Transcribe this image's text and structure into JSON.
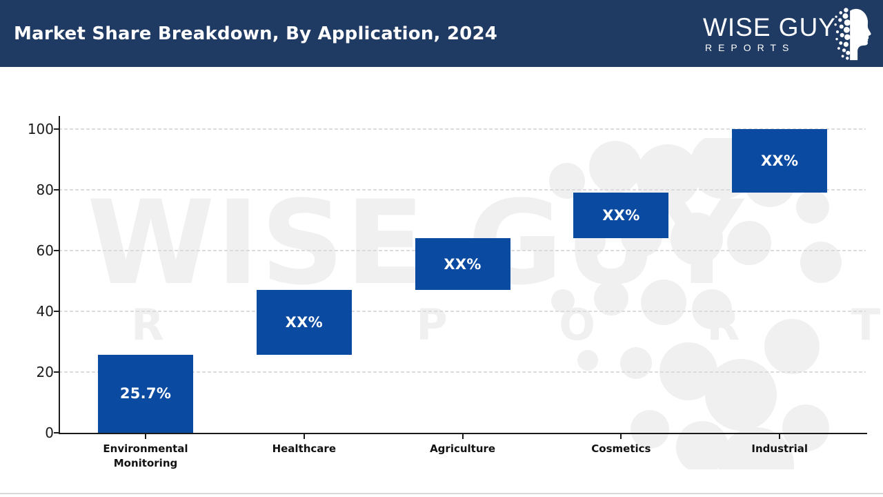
{
  "header": {
    "title": "Market Share Breakdown, By Application, 2024",
    "logo": {
      "line1": "WISE GUY",
      "line2": "REPORTS"
    }
  },
  "watermark": {
    "line1": "WISE GUY",
    "line2": "R E P O R T S"
  },
  "colors": {
    "header_bg": "#1f3a63",
    "bar_blue": "#0b4aa1",
    "axis_black": "#1a1a1a",
    "grid_gray": "#dcdcdc",
    "watermark_gray": "#f0f0f0",
    "value_label_white": "#ffffff"
  },
  "chart_data": {
    "type": "bar",
    "variant": "floating-waterfall-segments",
    "title": "Market Share Breakdown, By Application, 2024",
    "xlabel": "",
    "ylabel": "",
    "ylim": [
      0,
      104
    ],
    "yticks": [
      0,
      20,
      40,
      60,
      80,
      100
    ],
    "grid": "horizontal dashed",
    "legend": "none",
    "categories": [
      "Environmental Monitoring",
      "Healthcare",
      "Agriculture",
      "Cosmetics",
      "Industrial"
    ],
    "category_lines": [
      [
        "Environmental",
        "Monitoring"
      ],
      [
        "Healthcare"
      ],
      [
        "Agriculture"
      ],
      [
        "Cosmetics"
      ],
      [
        "Industrial"
      ]
    ],
    "bars": [
      {
        "category": "Environmental Monitoring",
        "start": 0,
        "end": 25.7,
        "value_label": "25.7%"
      },
      {
        "category": "Healthcare",
        "start": 25.7,
        "end": 47,
        "value_label": "XX%"
      },
      {
        "category": "Agriculture",
        "start": 47,
        "end": 64,
        "value_label": "XX%"
      },
      {
        "category": "Cosmetics",
        "start": 64,
        "end": 79,
        "value_label": "XX%"
      },
      {
        "category": "Industrial",
        "start": 79,
        "end": 100,
        "value_label": "XX%"
      }
    ],
    "bar_color": "#0b4aa1"
  }
}
